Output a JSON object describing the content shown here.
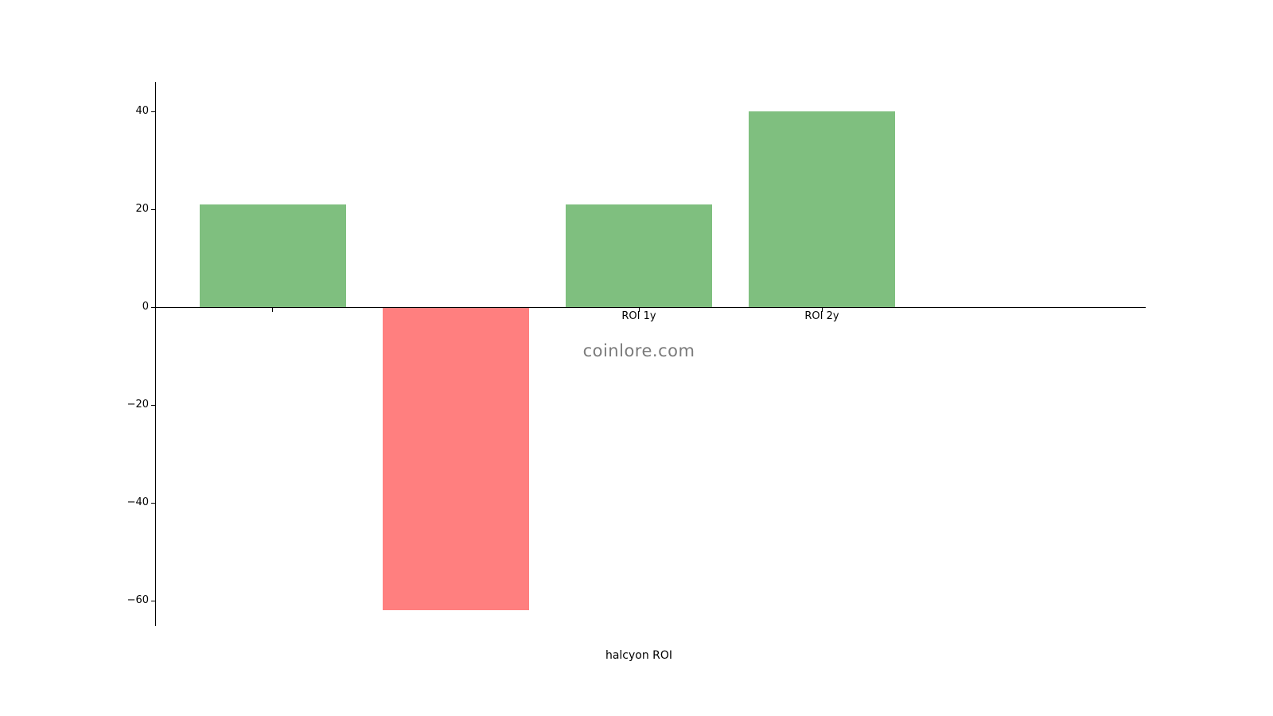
{
  "chart_data": {
    "type": "bar",
    "title": "",
    "xlabel": "halcyon ROI",
    "ylabel": "",
    "categories": [
      "",
      "",
      "ROI 1y",
      "ROI 2y"
    ],
    "values": [
      21,
      -62,
      21,
      40
    ],
    "bar_colors": [
      "#7fbf7f",
      "#ff7f7f",
      "#7fbf7f",
      "#7fbf7f"
    ],
    "positive_color": "#7fbf7f",
    "negative_color": "#ff7f7f",
    "yticks": [
      40,
      20,
      0,
      -20,
      -40,
      -60
    ],
    "ylim": [
      -65,
      46
    ],
    "grid": false,
    "legend_position": "none",
    "axis_color": "#000000",
    "tick_label_color": "#000000",
    "watermark": "coinlore.com",
    "watermark_color": "#7b7b7b"
  }
}
